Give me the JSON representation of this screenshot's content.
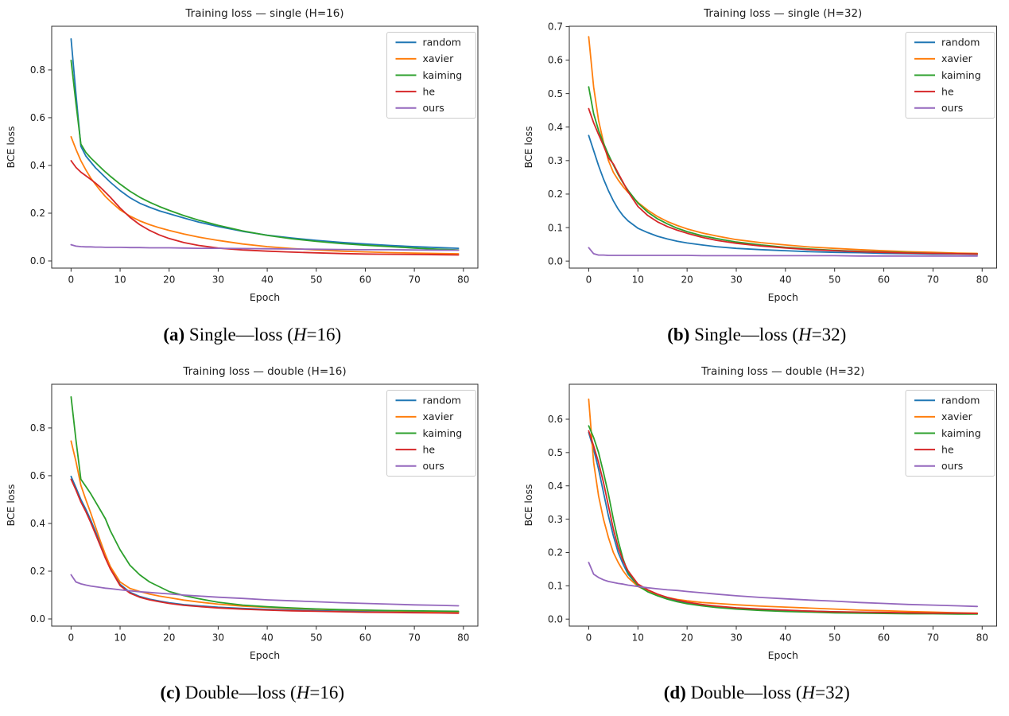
{
  "figure": {
    "background": "#ffffff"
  },
  "palette": {
    "random": "#1f77b4",
    "xavier": "#ff7f0e",
    "kaiming": "#2ca02c",
    "he": "#d62728",
    "ours": "#9467bd",
    "spine": "#2e2e2e",
    "text": "#1c1c1c",
    "legend_border": "#cccccc"
  },
  "chart_data": [
    {
      "id": "a",
      "type": "line",
      "title": "Training loss — single (H=16)",
      "xlabel": "Epoch",
      "ylabel": "BCE loss",
      "xlim": [
        -3.95,
        82.95
      ],
      "ylim": [
        -0.03,
        0.983
      ],
      "xticks": [
        0,
        10,
        20,
        30,
        40,
        50,
        60,
        70,
        80
      ],
      "yticks": [
        0.0,
        0.2,
        0.4,
        0.6,
        0.8
      ],
      "ytick_labels": [
        "0.0",
        "0.2",
        "0.4",
        "0.6",
        "0.8"
      ],
      "grid": false,
      "legend_position": "upper right",
      "legend": [
        "random",
        "xavier",
        "kaiming",
        "he",
        "ours"
      ],
      "x": [
        0,
        1,
        2,
        3,
        4,
        5,
        6,
        7,
        8,
        10,
        12,
        14,
        16,
        18,
        20,
        23,
        26,
        30,
        35,
        40,
        45,
        50,
        55,
        60,
        65,
        70,
        75,
        79
      ],
      "series": [
        {
          "name": "random",
          "color": "#1f77b4",
          "values": [
            0.93,
            0.7,
            0.48,
            0.44,
            0.415,
            0.39,
            0.37,
            0.35,
            0.33,
            0.295,
            0.265,
            0.242,
            0.225,
            0.21,
            0.198,
            0.18,
            0.163,
            0.144,
            0.124,
            0.108,
            0.096,
            0.086,
            0.078,
            0.071,
            0.065,
            0.06,
            0.056,
            0.053
          ]
        },
        {
          "name": "xavier",
          "color": "#ff7f0e",
          "values": [
            0.52,
            0.468,
            0.42,
            0.382,
            0.348,
            0.32,
            0.294,
            0.27,
            0.25,
            0.214,
            0.188,
            0.168,
            0.152,
            0.139,
            0.128,
            0.113,
            0.1,
            0.086,
            0.071,
            0.06,
            0.052,
            0.046,
            0.041,
            0.038,
            0.035,
            0.033,
            0.031,
            0.03
          ]
        },
        {
          "name": "kaiming",
          "color": "#2ca02c",
          "values": [
            0.84,
            0.66,
            0.49,
            0.455,
            0.432,
            0.412,
            0.392,
            0.373,
            0.355,
            0.322,
            0.292,
            0.267,
            0.246,
            0.228,
            0.212,
            0.19,
            0.171,
            0.149,
            0.126,
            0.107,
            0.093,
            0.082,
            0.073,
            0.066,
            0.06,
            0.054,
            0.049,
            0.046
          ]
        },
        {
          "name": "he",
          "color": "#d62728",
          "values": [
            0.42,
            0.392,
            0.372,
            0.357,
            0.342,
            0.326,
            0.308,
            0.288,
            0.267,
            0.222,
            0.183,
            0.152,
            0.128,
            0.109,
            0.094,
            0.077,
            0.065,
            0.054,
            0.046,
            0.041,
            0.037,
            0.034,
            0.031,
            0.029,
            0.028,
            0.027,
            0.026,
            0.025
          ]
        },
        {
          "name": "ours",
          "color": "#9467bd",
          "values": [
            0.068,
            0.062,
            0.06,
            0.059,
            0.059,
            0.058,
            0.058,
            0.057,
            0.057,
            0.057,
            0.056,
            0.056,
            0.055,
            0.055,
            0.055,
            0.054,
            0.053,
            0.053,
            0.052,
            0.051,
            0.05,
            0.049,
            0.048,
            0.047,
            0.047,
            0.046,
            0.045,
            0.045
          ]
        }
      ]
    },
    {
      "id": "b",
      "type": "line",
      "title": "Training loss — single (H=32)",
      "xlabel": "Epoch",
      "ylabel": "BCE loss",
      "xlim": [
        -3.95,
        82.95
      ],
      "ylim": [
        -0.021,
        0.701
      ],
      "xticks": [
        0,
        10,
        20,
        30,
        40,
        50,
        60,
        70,
        80
      ],
      "yticks": [
        0.0,
        0.1,
        0.2,
        0.3,
        0.4,
        0.5,
        0.6,
        0.7
      ],
      "ytick_labels": [
        "0.0",
        "0.1",
        "0.2",
        "0.3",
        "0.4",
        "0.5",
        "0.6",
        "0.7"
      ],
      "grid": false,
      "legend_position": "upper right",
      "legend": [
        "random",
        "xavier",
        "kaiming",
        "he",
        "ours"
      ],
      "x": [
        0,
        1,
        2,
        3,
        4,
        5,
        6,
        7,
        8,
        10,
        12,
        14,
        16,
        18,
        20,
        23,
        26,
        30,
        35,
        40,
        45,
        50,
        55,
        60,
        65,
        70,
        75,
        79
      ],
      "series": [
        {
          "name": "random",
          "color": "#1f77b4",
          "values": [
            0.375,
            0.33,
            0.285,
            0.245,
            0.21,
            0.18,
            0.155,
            0.135,
            0.12,
            0.098,
            0.085,
            0.074,
            0.066,
            0.059,
            0.054,
            0.048,
            0.043,
            0.038,
            0.034,
            0.031,
            0.028,
            0.026,
            0.025,
            0.023,
            0.022,
            0.021,
            0.021,
            0.02
          ]
        },
        {
          "name": "xavier",
          "color": "#ff7f0e",
          "values": [
            0.67,
            0.52,
            0.42,
            0.355,
            0.3,
            0.265,
            0.242,
            0.222,
            0.205,
            0.175,
            0.152,
            0.133,
            0.118,
            0.106,
            0.096,
            0.084,
            0.075,
            0.064,
            0.055,
            0.048,
            0.042,
            0.038,
            0.034,
            0.031,
            0.028,
            0.026,
            0.024,
            0.023
          ]
        },
        {
          "name": "kaiming",
          "color": "#2ca02c",
          "values": [
            0.52,
            0.44,
            0.39,
            0.352,
            0.318,
            0.287,
            0.258,
            0.233,
            0.211,
            0.173,
            0.146,
            0.126,
            0.111,
            0.098,
            0.088,
            0.076,
            0.067,
            0.057,
            0.048,
            0.041,
            0.036,
            0.032,
            0.029,
            0.027,
            0.025,
            0.023,
            0.022,
            0.021
          ]
        },
        {
          "name": "he",
          "color": "#d62728",
          "values": [
            0.455,
            0.413,
            0.378,
            0.345,
            0.308,
            0.29,
            0.262,
            0.235,
            0.207,
            0.163,
            0.136,
            0.117,
            0.103,
            0.092,
            0.083,
            0.071,
            0.062,
            0.053,
            0.045,
            0.039,
            0.034,
            0.031,
            0.028,
            0.026,
            0.024,
            0.023,
            0.022,
            0.021
          ]
        },
        {
          "name": "ours",
          "color": "#9467bd",
          "values": [
            0.04,
            0.022,
            0.018,
            0.018,
            0.017,
            0.017,
            0.017,
            0.017,
            0.017,
            0.017,
            0.017,
            0.017,
            0.017,
            0.017,
            0.017,
            0.016,
            0.016,
            0.016,
            0.016,
            0.016,
            0.016,
            0.016,
            0.015,
            0.015,
            0.015,
            0.015,
            0.015,
            0.015
          ]
        }
      ]
    },
    {
      "id": "c",
      "type": "line",
      "title": "Training loss — double (H=16)",
      "xlabel": "Epoch",
      "ylabel": "BCE loss",
      "xlim": [
        -3.95,
        82.95
      ],
      "ylim": [
        -0.03,
        0.983
      ],
      "xticks": [
        0,
        10,
        20,
        30,
        40,
        50,
        60,
        70,
        80
      ],
      "yticks": [
        0.0,
        0.2,
        0.4,
        0.6,
        0.8
      ],
      "ytick_labels": [
        "0.0",
        "0.2",
        "0.4",
        "0.6",
        "0.8"
      ],
      "grid": false,
      "legend_position": "upper right",
      "legend": [
        "random",
        "xavier",
        "kaiming",
        "he",
        "ours"
      ],
      "x": [
        0,
        1,
        2,
        3,
        4,
        5,
        6,
        7,
        8,
        10,
        12,
        14,
        16,
        18,
        20,
        23,
        26,
        30,
        35,
        40,
        45,
        50,
        55,
        60,
        65,
        70,
        75,
        79
      ],
      "series": [
        {
          "name": "random",
          "color": "#1f77b4",
          "values": [
            0.597,
            0.55,
            0.5,
            0.46,
            0.415,
            0.365,
            0.315,
            0.265,
            0.22,
            0.145,
            0.112,
            0.094,
            0.083,
            0.075,
            0.068,
            0.06,
            0.055,
            0.049,
            0.044,
            0.04,
            0.037,
            0.035,
            0.033,
            0.031,
            0.03,
            0.029,
            0.028,
            0.028
          ]
        },
        {
          "name": "xavier",
          "color": "#ff7f0e",
          "values": [
            0.745,
            0.66,
            0.56,
            0.5,
            0.445,
            0.385,
            0.325,
            0.27,
            0.22,
            0.155,
            0.128,
            0.115,
            0.104,
            0.096,
            0.089,
            0.079,
            0.071,
            0.062,
            0.054,
            0.049,
            0.044,
            0.041,
            0.038,
            0.036,
            0.034,
            0.032,
            0.031,
            0.03
          ]
        },
        {
          "name": "kaiming",
          "color": "#2ca02c",
          "values": [
            0.93,
            0.75,
            0.585,
            0.555,
            0.525,
            0.49,
            0.455,
            0.42,
            0.37,
            0.29,
            0.225,
            0.185,
            0.155,
            0.135,
            0.115,
            0.098,
            0.085,
            0.07,
            0.058,
            0.051,
            0.046,
            0.042,
            0.039,
            0.037,
            0.035,
            0.034,
            0.033,
            0.032
          ]
        },
        {
          "name": "he",
          "color": "#d62728",
          "values": [
            0.585,
            0.54,
            0.49,
            0.45,
            0.405,
            0.355,
            0.305,
            0.255,
            0.21,
            0.14,
            0.108,
            0.091,
            0.08,
            0.072,
            0.065,
            0.057,
            0.052,
            0.046,
            0.041,
            0.037,
            0.034,
            0.032,
            0.03,
            0.028,
            0.027,
            0.026,
            0.025,
            0.024
          ]
        },
        {
          "name": "ours",
          "color": "#9467bd",
          "values": [
            0.185,
            0.155,
            0.147,
            0.142,
            0.138,
            0.135,
            0.132,
            0.129,
            0.127,
            0.122,
            0.118,
            0.114,
            0.111,
            0.108,
            0.105,
            0.1,
            0.096,
            0.091,
            0.086,
            0.08,
            0.076,
            0.072,
            0.068,
            0.065,
            0.062,
            0.059,
            0.057,
            0.055
          ]
        }
      ]
    },
    {
      "id": "d",
      "type": "line",
      "title": "Training loss — double (H=32)",
      "xlabel": "Epoch",
      "ylabel": "BCE loss",
      "xlim": [
        -3.95,
        82.95
      ],
      "ylim": [
        -0.021,
        0.705
      ],
      "xticks": [
        0,
        10,
        20,
        30,
        40,
        50,
        60,
        70,
        80
      ],
      "yticks": [
        0.0,
        0.1,
        0.2,
        0.3,
        0.4,
        0.5,
        0.6
      ],
      "ytick_labels": [
        "0.0",
        "0.1",
        "0.2",
        "0.3",
        "0.4",
        "0.5",
        "0.6"
      ],
      "grid": false,
      "legend_position": "upper right",
      "legend": [
        "random",
        "xavier",
        "kaiming",
        "he",
        "ours"
      ],
      "x": [
        0,
        1,
        2,
        3,
        4,
        5,
        6,
        7,
        8,
        10,
        12,
        14,
        16,
        18,
        20,
        23,
        26,
        30,
        35,
        40,
        45,
        50,
        55,
        60,
        65,
        70,
        75,
        79
      ],
      "series": [
        {
          "name": "random",
          "color": "#1f77b4",
          "values": [
            0.56,
            0.51,
            0.45,
            0.38,
            0.31,
            0.25,
            0.2,
            0.165,
            0.135,
            0.1,
            0.085,
            0.072,
            0.062,
            0.055,
            0.049,
            0.043,
            0.038,
            0.033,
            0.029,
            0.026,
            0.024,
            0.022,
            0.02,
            0.019,
            0.018,
            0.018,
            0.017,
            0.017
          ]
        },
        {
          "name": "xavier",
          "color": "#ff7f0e",
          "values": [
            0.66,
            0.47,
            0.37,
            0.3,
            0.245,
            0.2,
            0.17,
            0.145,
            0.125,
            0.098,
            0.085,
            0.073,
            0.065,
            0.059,
            0.055,
            0.05,
            0.047,
            0.043,
            0.039,
            0.036,
            0.033,
            0.03,
            0.027,
            0.025,
            0.023,
            0.021,
            0.019,
            0.018
          ]
        },
        {
          "name": "kaiming",
          "color": "#2ca02c",
          "values": [
            0.58,
            0.545,
            0.5,
            0.44,
            0.375,
            0.3,
            0.235,
            0.18,
            0.14,
            0.1,
            0.082,
            0.07,
            0.06,
            0.052,
            0.046,
            0.04,
            0.035,
            0.03,
            0.026,
            0.023,
            0.021,
            0.019,
            0.018,
            0.017,
            0.016,
            0.016,
            0.015,
            0.015
          ]
        },
        {
          "name": "he",
          "color": "#d62728",
          "values": [
            0.565,
            0.52,
            0.47,
            0.41,
            0.34,
            0.27,
            0.215,
            0.175,
            0.145,
            0.105,
            0.088,
            0.075,
            0.065,
            0.057,
            0.051,
            0.044,
            0.039,
            0.034,
            0.03,
            0.027,
            0.024,
            0.022,
            0.021,
            0.02,
            0.019,
            0.018,
            0.018,
            0.017
          ]
        },
        {
          "name": "ours",
          "color": "#9467bd",
          "values": [
            0.17,
            0.135,
            0.125,
            0.118,
            0.113,
            0.11,
            0.107,
            0.105,
            0.102,
            0.098,
            0.094,
            0.091,
            0.088,
            0.086,
            0.083,
            0.079,
            0.075,
            0.07,
            0.065,
            0.061,
            0.057,
            0.054,
            0.05,
            0.047,
            0.044,
            0.042,
            0.04,
            0.038
          ]
        }
      ]
    }
  ],
  "captions": [
    {
      "bold": "(a)",
      "pre": " Single—loss (",
      "italic": "H",
      "post": "=16)"
    },
    {
      "bold": "(b)",
      "pre": " Single—loss (",
      "italic": "H",
      "post": "=32)"
    },
    {
      "bold": "(c)",
      "pre": " Double—loss (",
      "italic": "H",
      "post": "=16)"
    },
    {
      "bold": "(d)",
      "pre": " Double—loss (",
      "italic": "H",
      "post": "=32)"
    }
  ]
}
